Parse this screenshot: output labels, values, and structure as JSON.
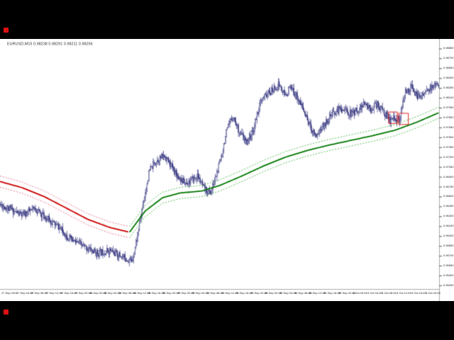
{
  "chart": {
    "title": "EURUSD,M15 0.98238 0.98291 0.98211 0.98256",
    "background": "#ffffff",
    "frame_color": "#000000",
    "marker_color": "#dd1111",
    "axis_line_color": "#aaaaaa",
    "axis_tick_color": "#555555",
    "axis_text_color": "#222222"
  },
  "chart_data": {
    "type": "candlestick",
    "symbol": "EURUSD",
    "timeframe": "M15",
    "title": "EURUSD,M15 0.98238 0.98291 0.98211 0.98256",
    "candle_color": "#1c1c70",
    "candle_up_fill": "#ffffff",
    "candle_count": 515,
    "noise": 0.00055,
    "seed": 11,
    "y_axis": {
      "min": 0.952,
      "max": 0.99,
      "labels": [
        "0.98850",
        "0.98700",
        "0.98550",
        "0.98400",
        "0.98250",
        "0.98100",
        "0.97950",
        "0.97800",
        "0.97650",
        "0.97500",
        "0.97350",
        "0.97200",
        "0.97050",
        "0.96900",
        "0.96750",
        "0.96600",
        "0.96450",
        "0.96300",
        "0.96150",
        "0.96000",
        "0.95850",
        "0.95700",
        "0.95550",
        "0.95400",
        "0.95250"
      ]
    },
    "x_axis": {
      "labels": [
        "27 Sep 2022",
        "27 Sep 04:45",
        "27 Sep 08:45",
        "27 Sep 12:45",
        "27 Sep 16:45",
        "27 Sep 20:45",
        "28 Sep 00:45",
        "28 Sep 04:45",
        "28 Sep 08:45",
        "28 Sep 12:45",
        "28 Sep 16:45",
        "28 Sep 20:45",
        "29 Sep 00:45",
        "29 Sep 04:45",
        "29 Sep 08:45",
        "29 Sep 12:45",
        "29 Sep 16:45",
        "29 Sep 20:45",
        "30 Sep 00:45",
        "30 Sep 04:45",
        "30 Sep 08:45",
        "30 Sep 12:45",
        "30 Sep 16:45",
        "30 Sep 20:45",
        "3 Oct 00:45",
        "3 Oct 04:45",
        "3 Oct 08:45",
        "3 Oct 12:45",
        "3 Oct 16:45",
        "3 Oct 20:45"
      ]
    },
    "price_path": [
      [
        0.0,
        0.96484
      ],
      [
        0.025,
        0.96402
      ],
      [
        0.05,
        0.9632
      ],
      [
        0.08,
        0.96422
      ],
      [
        0.1,
        0.96299
      ],
      [
        0.13,
        0.96155
      ],
      [
        0.16,
        0.9595
      ],
      [
        0.19,
        0.95847
      ],
      [
        0.22,
        0.95744
      ],
      [
        0.25,
        0.95785
      ],
      [
        0.28,
        0.95683
      ],
      [
        0.3,
        0.95631
      ],
      [
        0.31,
        0.95919
      ],
      [
        0.325,
        0.96484
      ],
      [
        0.34,
        0.96997
      ],
      [
        0.355,
        0.97151
      ],
      [
        0.375,
        0.97223
      ],
      [
        0.39,
        0.97069
      ],
      [
        0.405,
        0.96915
      ],
      [
        0.42,
        0.96813
      ],
      [
        0.435,
        0.96843
      ],
      [
        0.45,
        0.96915
      ],
      [
        0.465,
        0.9671
      ],
      [
        0.48,
        0.96659
      ],
      [
        0.5,
        0.971
      ],
      [
        0.515,
        0.97562
      ],
      [
        0.53,
        0.97839
      ],
      [
        0.545,
        0.97593
      ],
      [
        0.56,
        0.97429
      ],
      [
        0.575,
        0.97562
      ],
      [
        0.59,
        0.97973
      ],
      [
        0.605,
        0.98147
      ],
      [
        0.62,
        0.98209
      ],
      [
        0.635,
        0.98311
      ],
      [
        0.65,
        0.98127
      ],
      [
        0.66,
        0.9826
      ],
      [
        0.675,
        0.98147
      ],
      [
        0.69,
        0.97942
      ],
      [
        0.705,
        0.97696
      ],
      [
        0.72,
        0.97532
      ],
      [
        0.735,
        0.97665
      ],
      [
        0.75,
        0.97799
      ],
      [
        0.765,
        0.97901
      ],
      [
        0.78,
        0.97953
      ],
      [
        0.8,
        0.9786
      ],
      [
        0.815,
        0.97922
      ],
      [
        0.83,
        0.98004
      ],
      [
        0.845,
        0.97953
      ],
      [
        0.86,
        0.98004
      ],
      [
        0.875,
        0.97891
      ],
      [
        0.888,
        0.97757
      ],
      [
        0.9,
        0.97799
      ],
      [
        0.91,
        0.97757
      ],
      [
        0.925,
        0.98209
      ],
      [
        0.94,
        0.9827
      ],
      [
        0.95,
        0.98106
      ],
      [
        0.965,
        0.98168
      ],
      [
        0.98,
        0.98229
      ],
      [
        0.99,
        0.98291
      ],
      [
        1.0,
        0.9826
      ]
    ],
    "ma_path": [
      [
        0.0,
        0.96833
      ],
      [
        0.05,
        0.96741
      ],
      [
        0.1,
        0.96607
      ],
      [
        0.15,
        0.96433
      ],
      [
        0.2,
        0.96258
      ],
      [
        0.25,
        0.96135
      ],
      [
        0.295,
        0.96063
      ],
      [
        0.33,
        0.96381
      ],
      [
        0.37,
        0.96587
      ],
      [
        0.41,
        0.96659
      ],
      [
        0.46,
        0.9669
      ],
      [
        0.5,
        0.96772
      ],
      [
        0.55,
        0.96915
      ],
      [
        0.6,
        0.97069
      ],
      [
        0.65,
        0.97203
      ],
      [
        0.7,
        0.97306
      ],
      [
        0.75,
        0.97388
      ],
      [
        0.8,
        0.9746
      ],
      [
        0.85,
        0.97532
      ],
      [
        0.9,
        0.97614
      ],
      [
        0.95,
        0.97737
      ],
      [
        1.0,
        0.97881
      ]
    ],
    "ma_turn_frac": 0.295,
    "ma_colors": {
      "down": "#cc0000",
      "up": "#007700"
    },
    "envelope_offset": 0.00085,
    "envelope_colors": {
      "down": "#dd5577",
      "up": "#33aa33"
    },
    "boxes": [
      {
        "x0": 0.885,
        "x1": 0.905,
        "p0": 0.97716,
        "p1": 0.9789
      },
      {
        "x0": 0.908,
        "x1": 0.93,
        "p0": 0.977,
        "p1": 0.9787
      }
    ],
    "box_color": "#dd2222"
  }
}
